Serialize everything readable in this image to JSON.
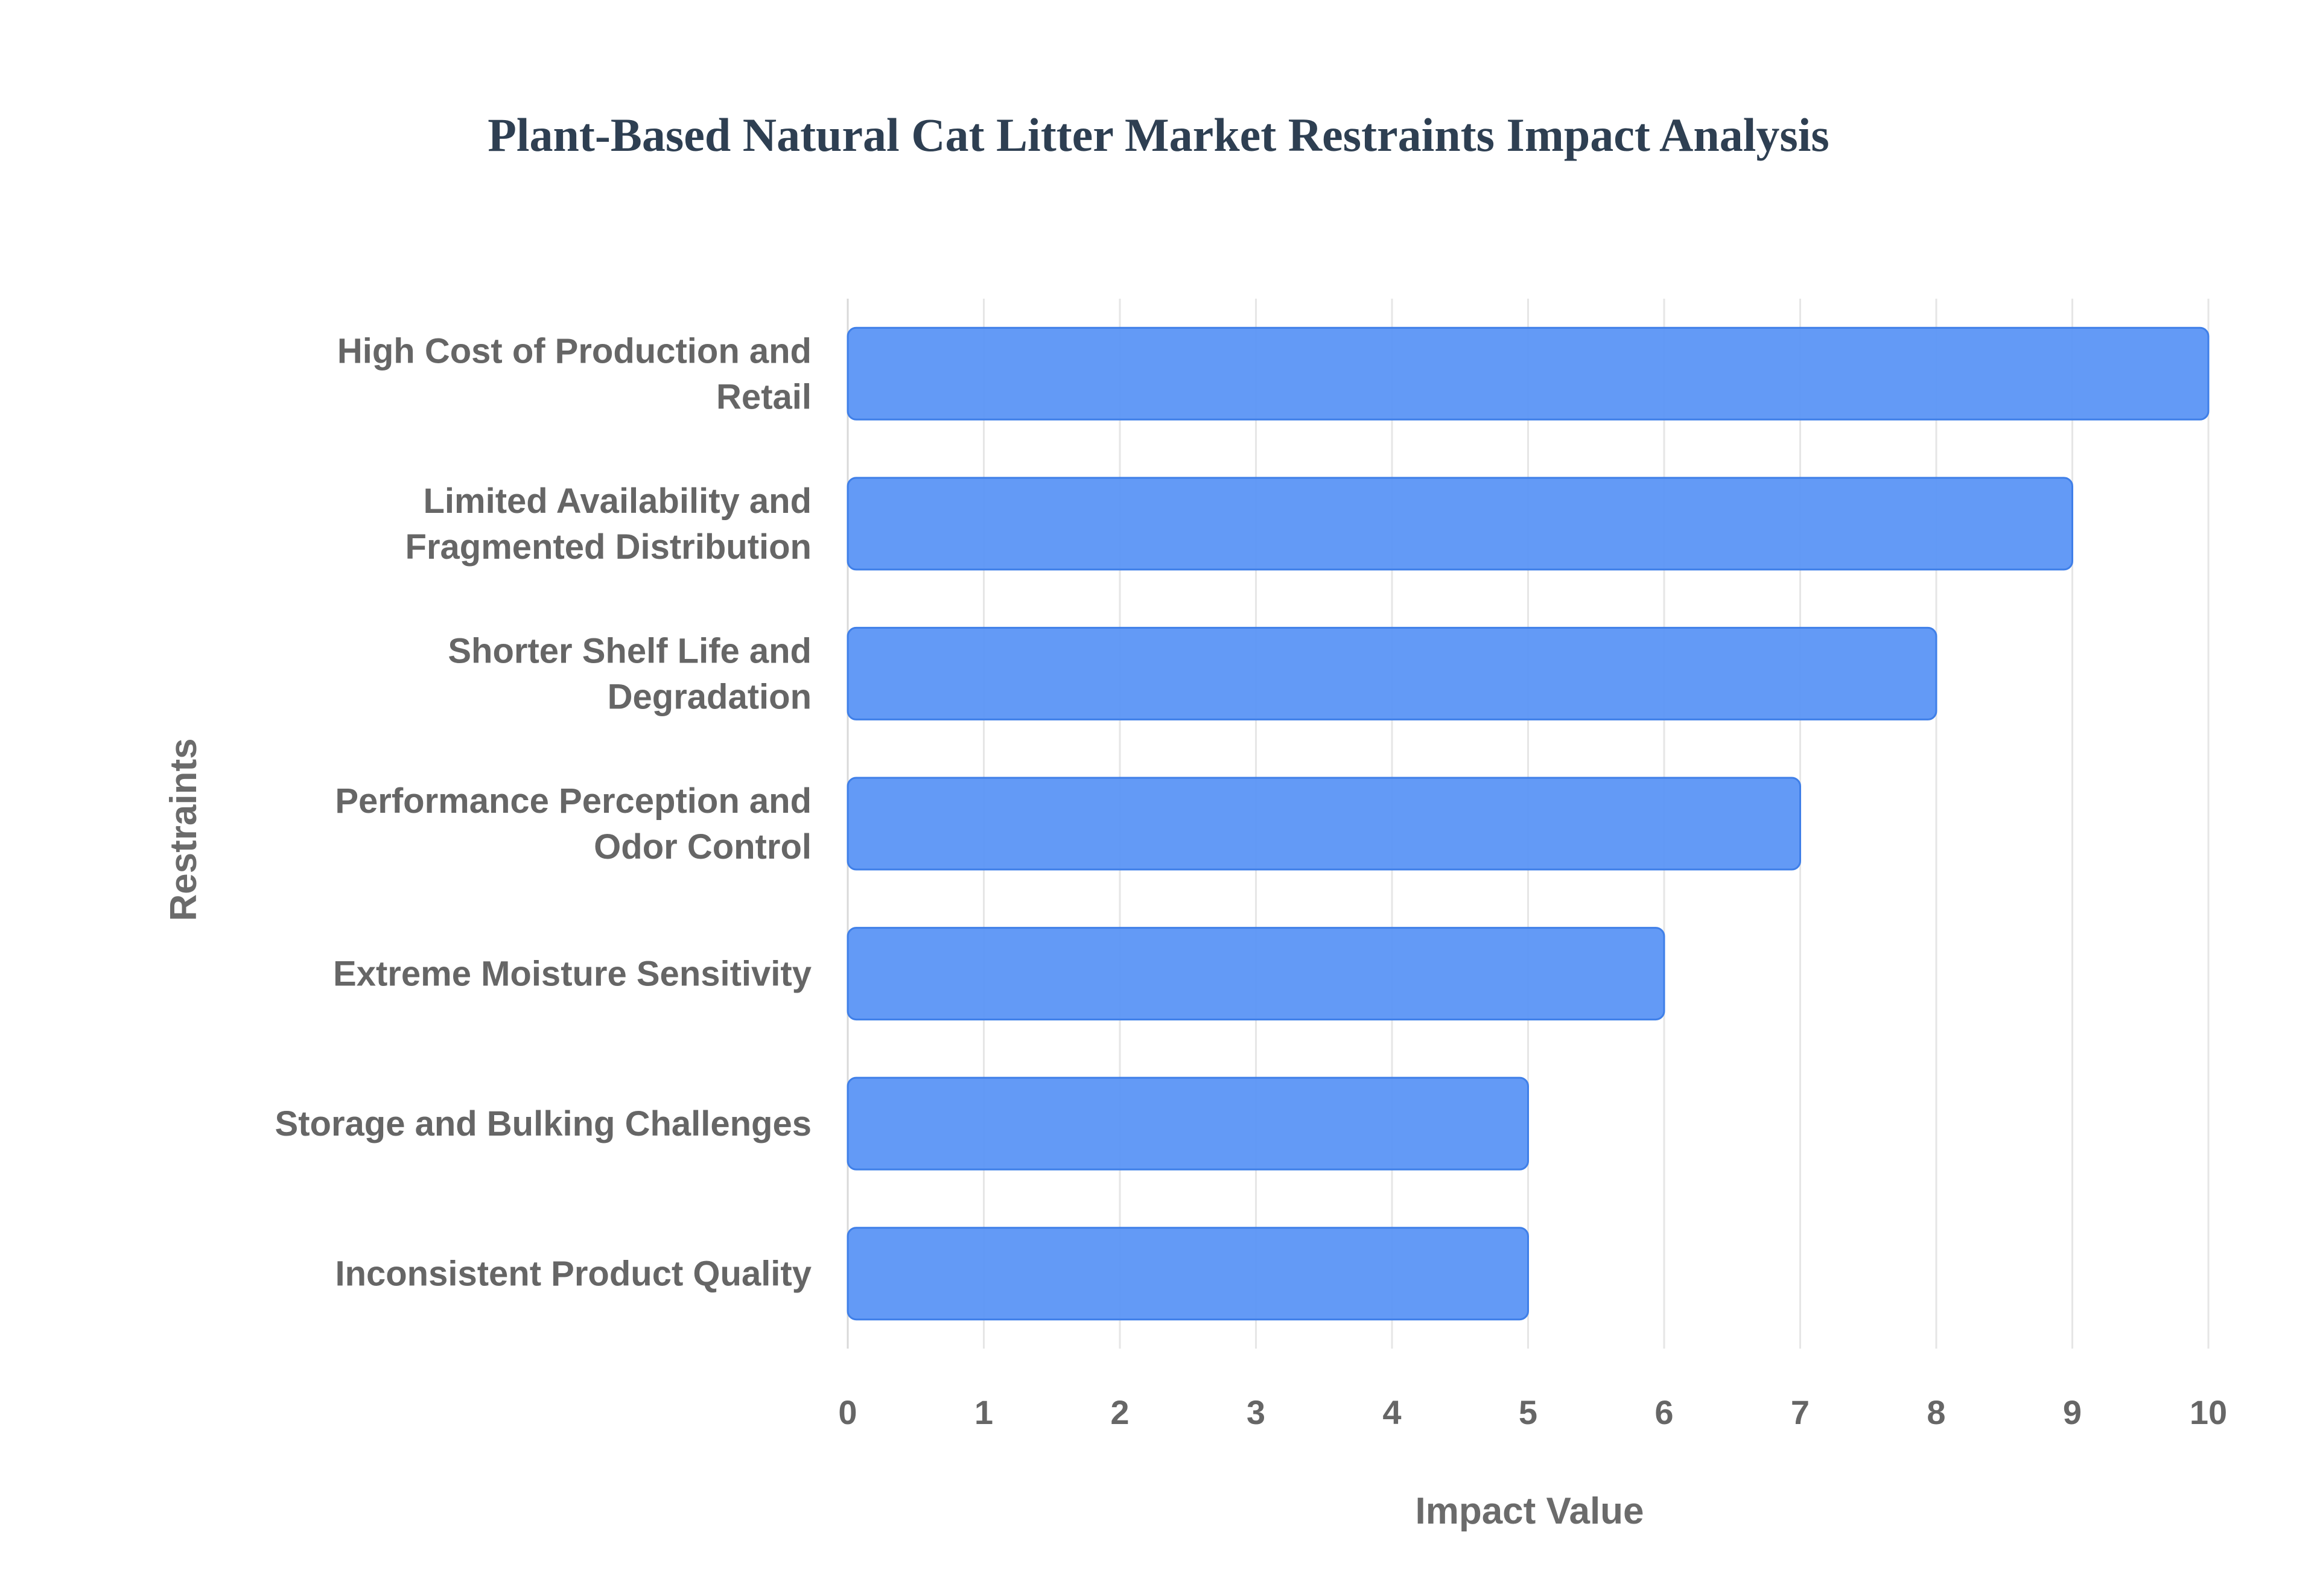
{
  "chart_data": {
    "type": "bar",
    "orientation": "horizontal",
    "title": "Plant-Based Natural Cat Litter Market Restraints Impact Analysis",
    "xlabel": "Impact Value",
    "ylabel": "Restraints",
    "xlim": [
      0,
      10
    ],
    "x_ticks": [
      "0",
      "1",
      "2",
      "3",
      "4",
      "5",
      "6",
      "7",
      "8",
      "9",
      "10"
    ],
    "grid": true,
    "legend": "none",
    "bar_color": "#5b95f5",
    "categories": [
      [
        "High Cost of Production and",
        "Retail"
      ],
      [
        "Limited Availability and",
        "Fragmented Distribution"
      ],
      [
        "Shorter Shelf Life and",
        "Degradation"
      ],
      [
        "Performance Perception and",
        "Odor Control"
      ],
      [
        "Extreme Moisture Sensitivity"
      ],
      [
        "Storage and Bulking Challenges"
      ],
      [
        "Inconsistent Product Quality"
      ]
    ],
    "values": [
      10,
      9,
      8,
      7,
      6,
      5,
      5
    ]
  }
}
